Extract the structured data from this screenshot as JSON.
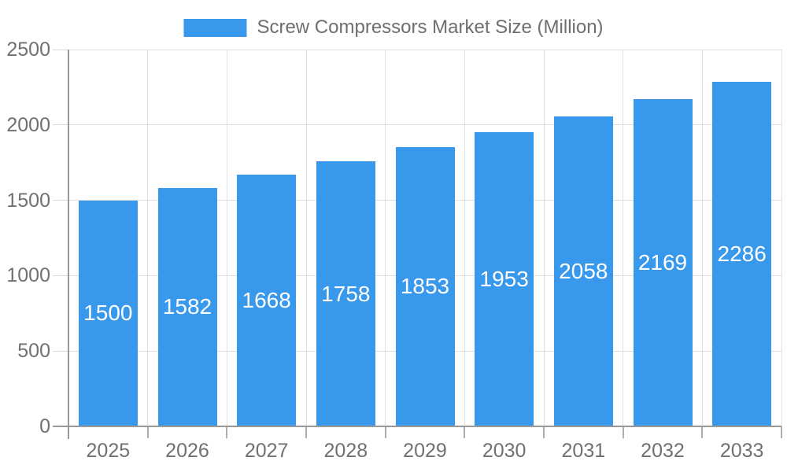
{
  "legend": {
    "series_label": "Screw Compressors Market Size (Million)",
    "position": "top-center"
  },
  "chart_data": {
    "type": "bar",
    "title": "Screw Compressors Market Size (Million)",
    "categories": [
      "2025",
      "2026",
      "2027",
      "2028",
      "2029",
      "2030",
      "2031",
      "2032",
      "2033"
    ],
    "values": [
      1500,
      1582,
      1668,
      1758,
      1853,
      1953,
      2058,
      2169,
      2286
    ],
    "value_labels": [
      "1500",
      "1582",
      "1668",
      "1758",
      "1853",
      "1953",
      "2058",
      "2169",
      "2286"
    ],
    "series": [
      {
        "name": "Screw Compressors Market Size (Million)",
        "values": [
          1500,
          1582,
          1668,
          1758,
          1853,
          1953,
          2058,
          2169,
          2286
        ]
      }
    ],
    "xlabel": "",
    "ylabel": "",
    "ylim": [
      0,
      2500
    ],
    "y_ticks": [
      0,
      500,
      1000,
      1500,
      2000,
      2500
    ],
    "y_tick_labels": [
      "0",
      "500",
      "1000",
      "1500",
      "2000",
      "2500"
    ],
    "grid": true,
    "legend_position": "top",
    "colors": {
      "bar": "#3898EC",
      "value_label_text": "#FFFFFF",
      "axis_label_text": "#707070",
      "legend_text": "#6E6E6E",
      "gridline": "#E0E0E0",
      "axis_line": "#999999",
      "y_tick": "#D9D9D9",
      "x_tick": "#ADADAD"
    }
  }
}
